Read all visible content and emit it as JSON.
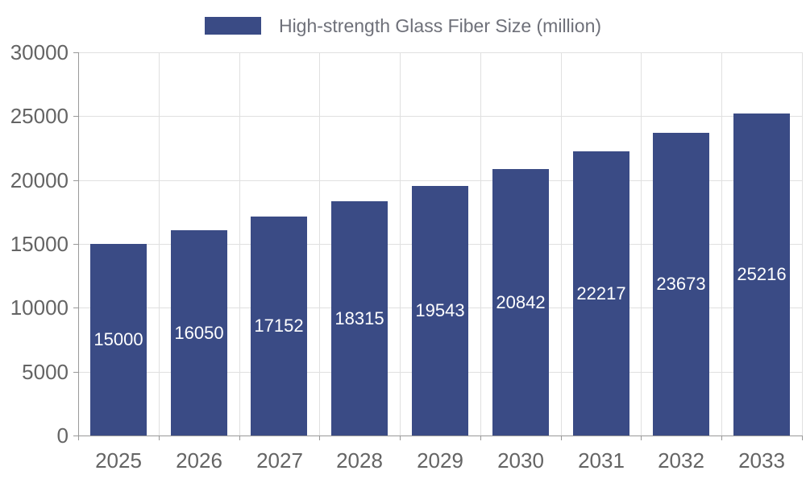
{
  "chart_data": {
    "type": "bar",
    "title": "High-strength Glass Fiber Size (million)",
    "legend_position": "top",
    "grid": true,
    "categories": [
      "2025",
      "2026",
      "2027",
      "2028",
      "2029",
      "2030",
      "2031",
      "2032",
      "2033"
    ],
    "series": [
      {
        "name": "High-strength Glass Fiber Size (million)",
        "values": [
          15000,
          16050,
          17152,
          18315,
          19543,
          20842,
          22217,
          23673,
          25216
        ]
      }
    ],
    "xlabel": "",
    "ylabel": "",
    "ylim": [
      0,
      30000
    ],
    "yticks": [
      0,
      5000,
      10000,
      15000,
      20000,
      25000,
      30000
    ],
    "colors": {
      "bar": "#3A4B85",
      "bar_label": "#FFFFFF",
      "axis_line": "#999999",
      "grid_line": "#E0E0E0",
      "tick_label": "#646464",
      "legend_text": "#6E7079"
    }
  }
}
